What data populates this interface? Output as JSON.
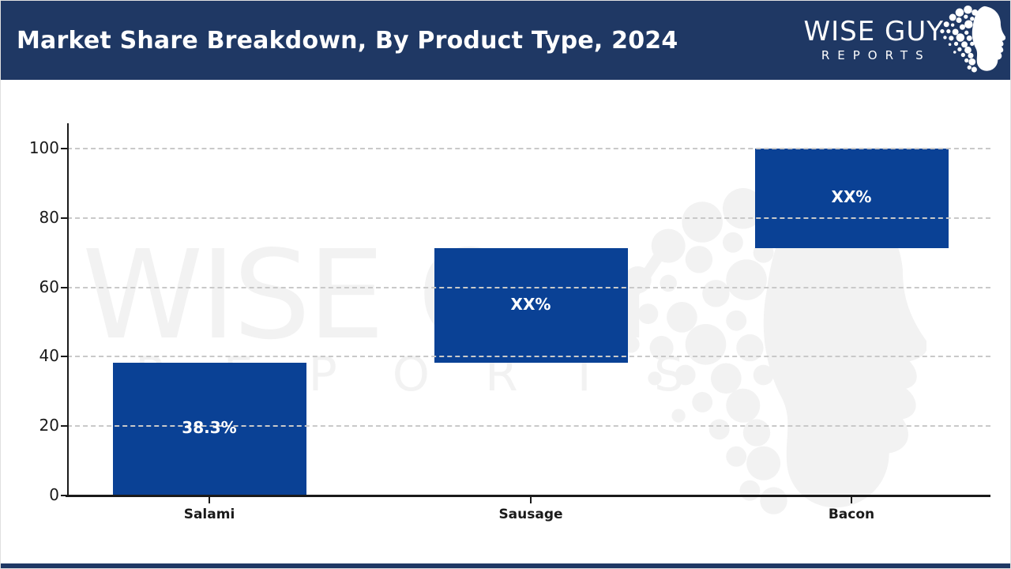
{
  "header": {
    "title": "Market Share Breakdown, By Product Type, 2024",
    "logo": {
      "brand_line1": "WISE GUY",
      "brand_line2": "REPORTS",
      "face_icon": "wiseguy-face-icon"
    }
  },
  "watermark": {
    "line1": "WISE GUY",
    "line2": "REPORTS",
    "face_icon": "wiseguy-face-watermark-icon"
  },
  "colors": {
    "header_navy": "#1f3864",
    "bar_blue": "#0a4195",
    "axis": "#1a1a1a",
    "grid": "#c9c9c9",
    "watermark_gray": "#f2f2f2",
    "bar_label_white": "#ffffff"
  },
  "chart_data": {
    "type": "bar",
    "variant": "floating-segment-waterfall",
    "title": "Market Share Breakdown, By Product Type, 2024",
    "categories": [
      "Salami",
      "Sausage",
      "Bacon"
    ],
    "segments": [
      {
        "category": "Salami",
        "start": 0,
        "end": 38.3,
        "label": "38.3%"
      },
      {
        "category": "Sausage",
        "start": 38.3,
        "end": 71.2,
        "label": "XX%"
      },
      {
        "category": "Bacon",
        "start": 71.2,
        "end": 100,
        "label": "XX%"
      }
    ],
    "ylim": [
      0,
      107
    ],
    "yticks": [
      0,
      20,
      40,
      60,
      80,
      100
    ],
    "xlabel": "",
    "ylabel": "",
    "legend": "none",
    "grid": "horizontal dashed lines drawn above bars",
    "bar_color": "#0a4195",
    "bar_label_color": "#ffffff"
  }
}
